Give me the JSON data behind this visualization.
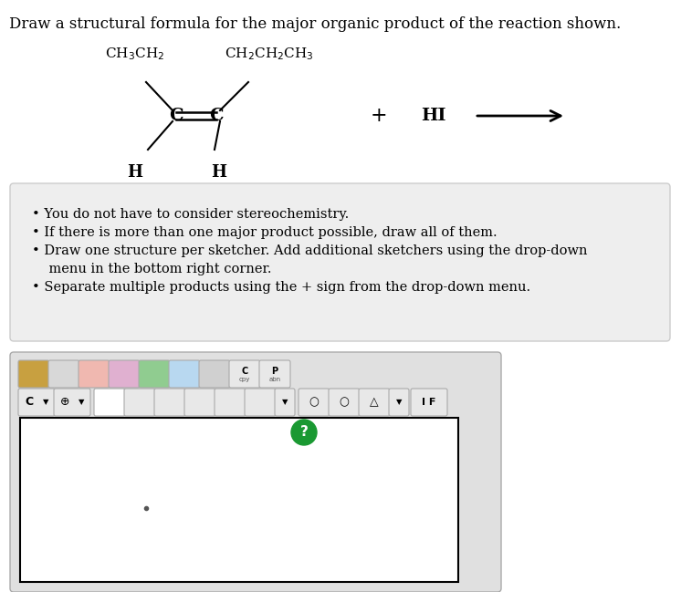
{
  "title": "Draw a structural formula for the major organic product of the reaction shown.",
  "bg": "#ffffff",
  "bullet_box_bg": "#eeeeee",
  "bullet_box_edge": "#cccccc",
  "bullets": [
    "You do not have to consider stereochemistry.",
    "If there is more than one major product possible, draw all of them.",
    "Draw one structure per sketcher. Add additional sketchers using the drop-down",
    "menu in the bottom right corner.",
    "Separate multiple products using the + sign from the drop-down menu."
  ],
  "panel_bg": "#e0e0e0",
  "panel_edge": "#aaaaaa",
  "toolbar_btn_bg": "#e8e8e8",
  "toolbar_btn_edge": "#bbbbbb",
  "draw_area_bg": "#ffffff",
  "icon_colors": [
    "#c8a040",
    "#d8d8d8",
    "#f0b8b0",
    "#e0b0d0",
    "#90cc90",
    "#b8d8f0",
    "#d0d0d0",
    "#e8e8e8",
    "#e8e8e8"
  ]
}
